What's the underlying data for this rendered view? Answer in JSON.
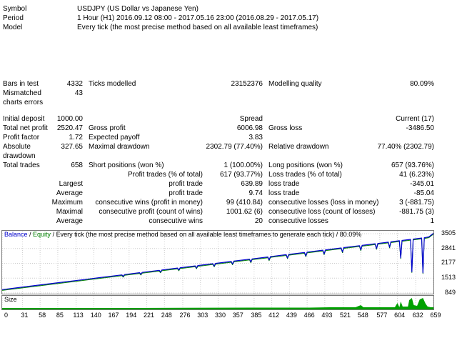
{
  "report": {
    "info_rows": [
      {
        "label": "Symbol",
        "value": "USDJPY (US Dollar vs Japanese Yen)"
      },
      {
        "label": "Period",
        "value": "1 Hour (H1) 2016.09.12 08:00 - 2017.05.16 23:00 (2016.08.29 - 2017.05.17)"
      },
      {
        "label": "Model",
        "value": "Every tick (the most precise method based on all available least timeframes)"
      }
    ],
    "stats_rows": [
      {
        "c1": "Bars in test",
        "c2": "4332",
        "c3": "Ticks modelled",
        "c4": "23152376",
        "c5": "Modelling quality",
        "c6": "80.09%"
      },
      {
        "c1": "Mismatched charts errors",
        "c2": "43",
        "c3": "",
        "c4": "",
        "c5": "",
        "c6": ""
      },
      {
        "c1": "Initial deposit",
        "c2": "1000.00",
        "c3": "",
        "c4": "Spread",
        "c5": "",
        "c6": "Current (17)",
        "space_before": true
      },
      {
        "c1": "Total net profit",
        "c2": "2520.47",
        "c3": "Gross profit",
        "c4": "6006.98",
        "c5": "Gross loss",
        "c6": "-3486.50"
      },
      {
        "c1": "Profit factor",
        "c2": "1.72",
        "c3": "Expected payoff",
        "c4": "3.83",
        "c5": "",
        "c6": ""
      },
      {
        "c1": "Absolute drawdown",
        "c2": "327.65",
        "c3": "Maximal drawdown",
        "c4": "2302.79 (77.40%)",
        "c5": "Relative drawdown",
        "c6": "77.40% (2302.79)"
      },
      {
        "c1": "Total trades",
        "c2": "658",
        "c3": "Short positions (won %)",
        "c4": "1 (100.00%)",
        "c5": "Long positions (won %)",
        "c6": "657 (93.76%)"
      },
      {
        "c1": "",
        "c2": "",
        "c3": "Profit trades (% of total)",
        "c4": "617 (93.77%)",
        "c5": "Loss trades (% of total)",
        "c6": "41 (6.23%)",
        "sub": true
      },
      {
        "c1": "Largest",
        "c3": "profit trade",
        "c4": "639.89",
        "c5": "loss trade",
        "c6": "-345.01",
        "sub": true
      },
      {
        "c1": "Average",
        "c3": "profit trade",
        "c4": "9.74",
        "c5": "loss trade",
        "c6": "-85.04",
        "sub": true
      },
      {
        "c1": "Maximum",
        "c3": "consecutive wins (profit in money)",
        "c4": "99 (410.84)",
        "c5": "consecutive losses (loss in money)",
        "c6": "3 (-881.75)",
        "sub": true
      },
      {
        "c1": "Maximal",
        "c3": "consecutive profit (count of wins)",
        "c4": "1001.62 (6)",
        "c5": "consecutive loss (count of losses)",
        "c6": "-881.75 (3)",
        "sub": true
      },
      {
        "c1": "Average",
        "c3": "consecutive wins",
        "c4": "20",
        "c5": "consecutive losses",
        "c6": "1",
        "sub": true
      }
    ]
  },
  "chart_data": {
    "type": "line",
    "caption_segments": [
      {
        "text": "Balance",
        "color": "#0000d0"
      },
      {
        "text": " / ",
        "color": "#000000"
      },
      {
        "text": "Equity",
        "color": "#008000"
      },
      {
        "text": " / Every tick (the most precise method based on all available least timeframes to generate each tick) / 80.09%",
        "color": "#000000"
      }
    ],
    "x_ticks": [
      0,
      31,
      58,
      85,
      113,
      140,
      167,
      194,
      221,
      248,
      276,
      303,
      330,
      357,
      385,
      412,
      439,
      466,
      493,
      521,
      548,
      577,
      604,
      632,
      659
    ],
    "y_ticks": [
      3505,
      2841,
      2177,
      1513,
      849
    ],
    "x_max": 659,
    "y_display_range": [
      817,
      3631
    ],
    "grid_color": "#cdcdcd",
    "initial_deposit": 1000,
    "final_balance": 3520.47,
    "series": [
      {
        "name": "Balance",
        "color": "#0000d0",
        "points": [
          [
            0,
            1000
          ],
          [
            30,
            1108
          ],
          [
            60,
            1216
          ],
          [
            90,
            1324
          ],
          [
            120,
            1432
          ],
          [
            150,
            1540
          ],
          [
            183,
            1659
          ],
          [
            185,
            1595
          ],
          [
            187,
            1673
          ],
          [
            210,
            1756
          ],
          [
            212,
            1688
          ],
          [
            214,
            1770
          ],
          [
            240,
            1864
          ],
          [
            242,
            1788
          ],
          [
            244,
            1878
          ],
          [
            268,
            1965
          ],
          [
            270,
            1880
          ],
          [
            272,
            1979
          ],
          [
            295,
            2062
          ],
          [
            297,
            1968
          ],
          [
            299,
            2076
          ],
          [
            322,
            2159
          ],
          [
            324,
            2055
          ],
          [
            326,
            2173
          ],
          [
            350,
            2260
          ],
          [
            352,
            2148
          ],
          [
            354,
            2274
          ],
          [
            378,
            2361
          ],
          [
            380,
            2238
          ],
          [
            382,
            2375
          ],
          [
            406,
            2462
          ],
          [
            408,
            2328
          ],
          [
            410,
            2476
          ],
          [
            434,
            2562
          ],
          [
            436,
            2418
          ],
          [
            438,
            2576
          ],
          [
            462,
            2663
          ],
          [
            464,
            2508
          ],
          [
            466,
            2677
          ],
          [
            490,
            2764
          ],
          [
            492,
            2598
          ],
          [
            494,
            2778
          ],
          [
            518,
            2865
          ],
          [
            520,
            2688
          ],
          [
            522,
            2879
          ],
          [
            546,
            2966
          ],
          [
            548,
            2778
          ],
          [
            550,
            2980
          ],
          [
            570,
            3052
          ],
          [
            572,
            2838
          ],
          [
            574,
            3066
          ],
          [
            590,
            3124
          ],
          [
            592,
            2898
          ],
          [
            594,
            3138
          ],
          [
            607,
            3185
          ],
          [
            609,
            2420
          ],
          [
            611,
            3199
          ],
          [
            624,
            3246
          ],
          [
            626,
            1800
          ],
          [
            628,
            3260
          ],
          [
            641,
            3307
          ],
          [
            643,
            1750
          ],
          [
            645,
            3321
          ],
          [
            652,
            3360
          ],
          [
            659,
            3520
          ]
        ]
      },
      {
        "name": "Equity",
        "color": "#008000",
        "offset": -35
      }
    ],
    "size_panel": {
      "label": "Size",
      "color": "#00a000",
      "points": [
        [
          0,
          2
        ],
        [
          200,
          2
        ],
        [
          380,
          2.5
        ],
        [
          470,
          2.5
        ],
        [
          500,
          3
        ],
        [
          540,
          3
        ],
        [
          548,
          6
        ],
        [
          552,
          3
        ],
        [
          572,
          3
        ],
        [
          590,
          3
        ],
        [
          600,
          3
        ],
        [
          604,
          9
        ],
        [
          607,
          3
        ],
        [
          609,
          11
        ],
        [
          612,
          4
        ],
        [
          620,
          4
        ],
        [
          622,
          13
        ],
        [
          626,
          16
        ],
        [
          629,
          6
        ],
        [
          634,
          5
        ],
        [
          638,
          14
        ],
        [
          643,
          16
        ],
        [
          647,
          8
        ],
        [
          650,
          4
        ],
        [
          655,
          3
        ],
        [
          659,
          3
        ]
      ]
    }
  }
}
